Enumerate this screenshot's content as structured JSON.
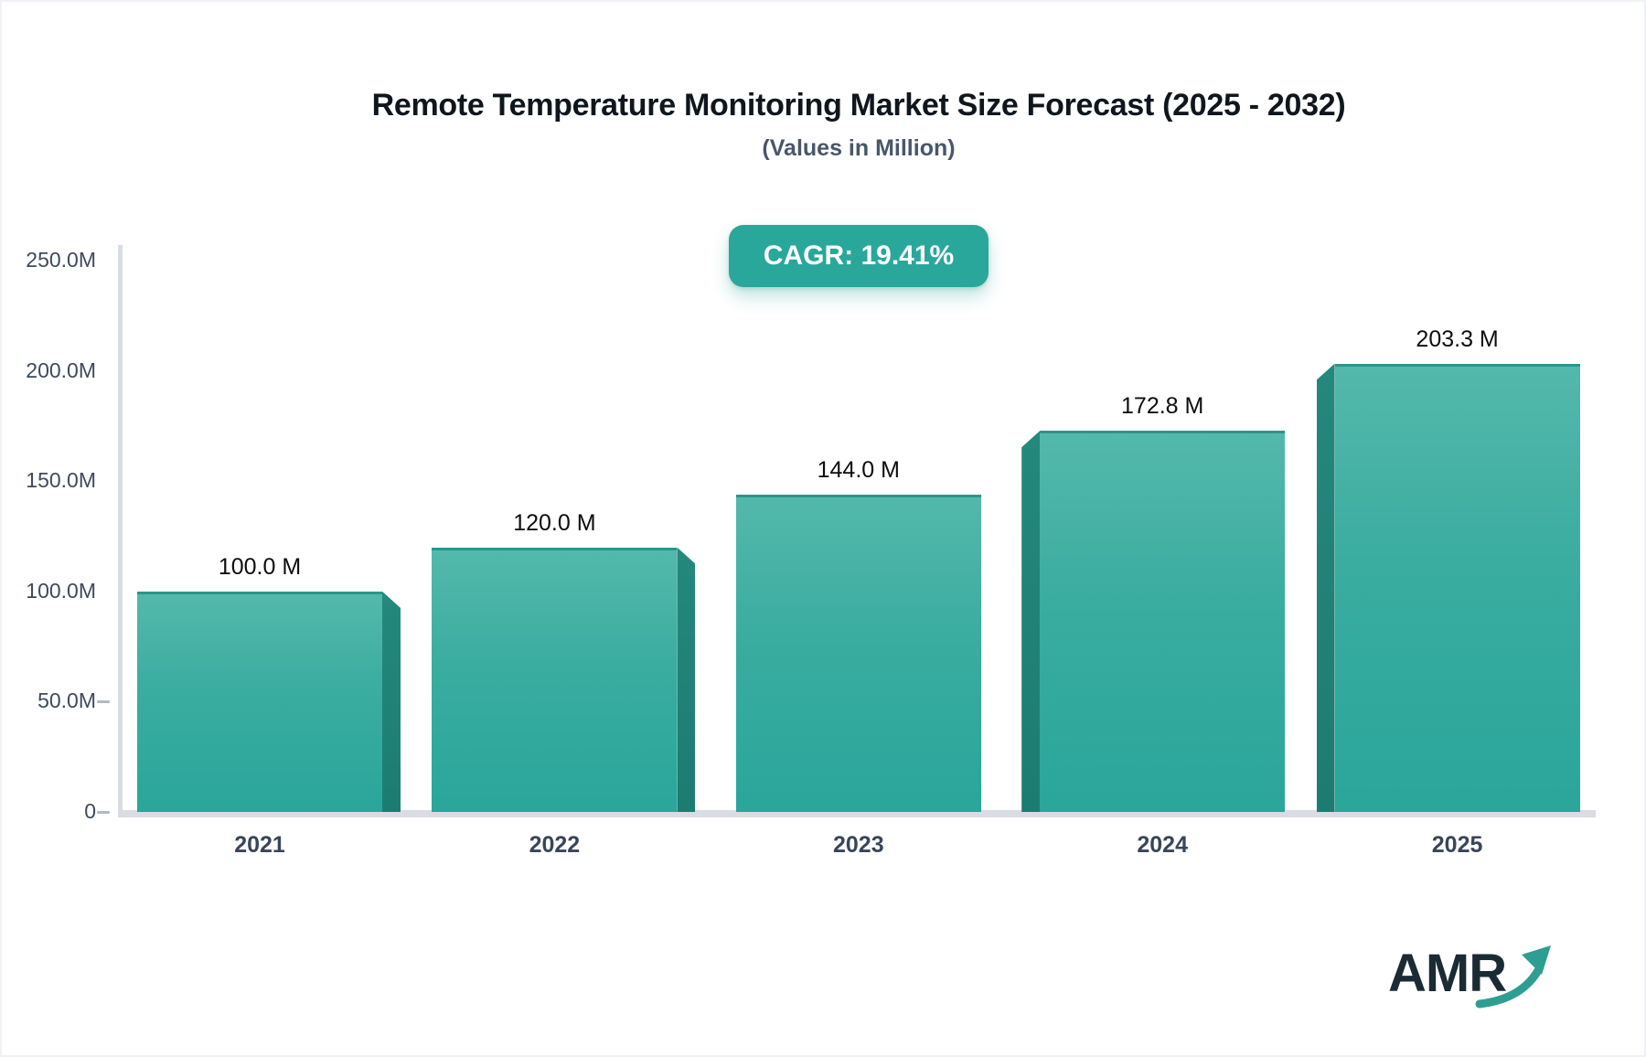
{
  "header": {
    "title": "Remote Temperature Monitoring Market Size Forecast (2025 - 2032)",
    "subtitle": "(Values in Million)",
    "cagr_badge_label": "CAGR: 19.41%"
  },
  "chart_data": {
    "type": "bar",
    "title": "Remote Temperature Monitoring Market Size Forecast (2025 - 2032)",
    "subtitle": "(Values in Million)",
    "cagr_percent": 19.41,
    "categories": [
      "2021",
      "2022",
      "2023",
      "2024",
      "2025"
    ],
    "values": [
      100.0,
      120.0,
      144.0,
      172.8,
      203.3
    ],
    "value_labels": [
      "100.0 M",
      "120.0 M",
      "144.0 M",
      "172.8 M",
      "203.3 M"
    ],
    "unit": "Million",
    "ylim": [
      0,
      250
    ],
    "ytick_values": [
      250,
      200,
      150,
      100,
      50,
      0
    ],
    "ytick_labels": [
      "250.0M",
      "200.0M",
      "150.0M",
      "100.0M",
      "50.0M",
      "0"
    ],
    "ytick_dashes": [
      false,
      false,
      false,
      false,
      true,
      true
    ],
    "grid": false,
    "legend": false,
    "bevel_sides": [
      "right",
      "right",
      "none",
      "left",
      "left"
    ],
    "colors": {
      "bar_top": "#54b8ac",
      "bar_bottom": "#2aa69a",
      "bar_side": "#1d7c72",
      "badge": "#2aa79b",
      "axis_line": "#d9dce2",
      "label_text": "#3e4a5b"
    }
  },
  "logo": {
    "text": "AMR",
    "icon": "growth-arrow-icon",
    "text_color": "#1b2b33",
    "arrow_color": "#2f9e92"
  }
}
